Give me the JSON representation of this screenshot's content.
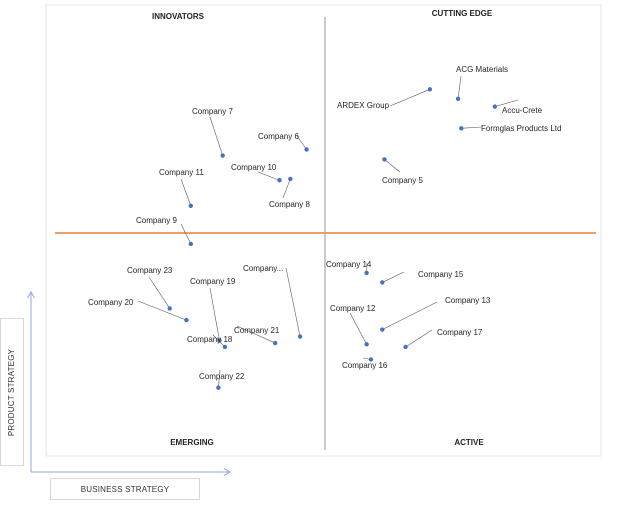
{
  "chart_data": {
    "type": "scatter",
    "quadrants": {
      "top_left": "INNOVATORS",
      "top_right": "CUTTING EDGE",
      "bottom_left": "EMERGING",
      "bottom_right": "ACTIVE"
    },
    "xlabel": "BUSINESS STRATEGY",
    "ylabel": "PRODUCT STRATEGY",
    "xlim": [
      0,
      100
    ],
    "ylim": [
      0,
      100
    ],
    "grid": false,
    "legend": "none",
    "colors": {
      "point": "#4472c4",
      "divider_h": "#ed7d31",
      "divider_v": "#a6a6a6",
      "leader": "#595959"
    },
    "points": [
      {
        "name": "ACG Materials",
        "x": 74.5,
        "y": 81.1
      },
      {
        "name": "Accu-Crete",
        "x": 81.3,
        "y": 79.3
      },
      {
        "name": "Formglas Products Ltd",
        "x": 75.1,
        "y": 74.3
      },
      {
        "name": "ARDEX Group",
        "x": 69.3,
        "y": 83.3
      },
      {
        "name": "Company 5",
        "x": 60.9,
        "y": 67.1
      },
      {
        "name": "Company 6",
        "x": 46.5,
        "y": 69.4
      },
      {
        "name": "Company 7",
        "x": 31.0,
        "y": 68.0
      },
      {
        "name": "Company 8",
        "x": 43.5,
        "y": 62.6
      },
      {
        "name": "Company 10",
        "x": 41.5,
        "y": 62.3
      },
      {
        "name": "Company 11",
        "x": 25.1,
        "y": 56.4
      },
      {
        "name": "Company 9",
        "x": 25.1,
        "y": 47.6
      },
      {
        "name": "Company 14",
        "x": 57.6,
        "y": 40.9
      },
      {
        "name": "Company 15",
        "x": 60.5,
        "y": 38.7
      },
      {
        "name": "Company 13",
        "x": 60.5,
        "y": 27.8
      },
      {
        "name": "Company 12",
        "x": 57.6,
        "y": 24.4
      },
      {
        "name": "Company 17",
        "x": 64.8,
        "y": 23.8
      },
      {
        "name": "Company 16",
        "x": 58.4,
        "y": 20.9
      },
      {
        "name": "Company 23",
        "x": 21.2,
        "y": 32.7
      },
      {
        "name": "Company 20",
        "x": 24.3,
        "y": 30.0
      },
      {
        "name": "Company 19",
        "x": 30.4,
        "y": 25.3
      },
      {
        "name": "Company...",
        "x": 45.3,
        "y": 26.2
      },
      {
        "name": "Company 21",
        "x": 40.7,
        "y": 24.7
      },
      {
        "name": "Company 18",
        "x": 31.4,
        "y": 23.8
      },
      {
        "name": "Company 22",
        "x": 30.2,
        "y": 14.4
      }
    ]
  }
}
